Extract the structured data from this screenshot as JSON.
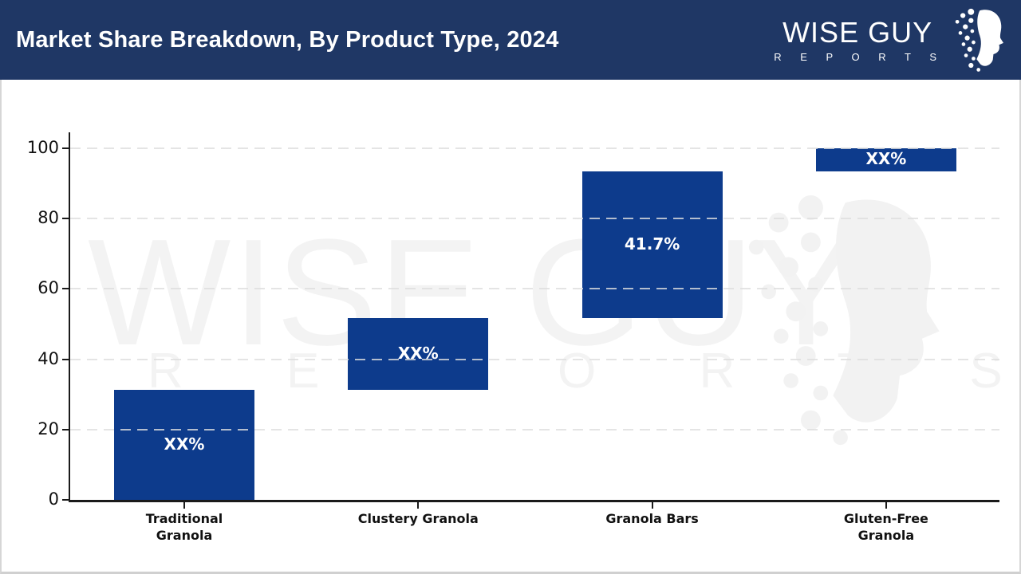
{
  "header": {
    "title": "Market Share Breakdown, By Product Type, 2024",
    "logo": {
      "line1": "WISE GUY",
      "line2": "R E P O R T S"
    }
  },
  "watermark": {
    "line1": "WISE GUY",
    "line2": "R E P O R T S"
  },
  "colors": {
    "header_bg": "#1f3765",
    "bar": "#0d3b8c",
    "axis": "#1a1a1a",
    "gridline": "#dedede",
    "watermark": "#f3f3f3"
  },
  "chart_data": {
    "type": "bar",
    "subtype": "waterfall",
    "title": "Market Share Breakdown, By Product Type, 2024",
    "categories": [
      "Traditional Granola",
      "Clustery Granola",
      "Granola Bars",
      "Gluten-Free Granola"
    ],
    "category_label_lines": [
      [
        "Traditional",
        "Granola"
      ],
      [
        "Clustery Granola"
      ],
      [
        "Granola Bars"
      ],
      [
        "Gluten-Free",
        "Granola"
      ]
    ],
    "segments": [
      {
        "category": "Traditional Granola",
        "start": 0,
        "end": 31.2,
        "label": "XX%"
      },
      {
        "category": "Clustery Granola",
        "start": 31.2,
        "end": 51.8,
        "label": "XX%"
      },
      {
        "category": "Granola Bars",
        "start": 51.8,
        "end": 93.5,
        "label": "41.7%"
      },
      {
        "category": "Gluten-Free Granola",
        "start": 93.5,
        "end": 100,
        "label": "XX%"
      }
    ],
    "ylim": [
      0,
      100
    ],
    "yticks": [
      0,
      20,
      40,
      60,
      80,
      100
    ],
    "xlabel": "",
    "ylabel": "",
    "grid": "dashed horizontal, drawn above bars",
    "legend": "none",
    "bar_color": "#0d3b8c"
  }
}
